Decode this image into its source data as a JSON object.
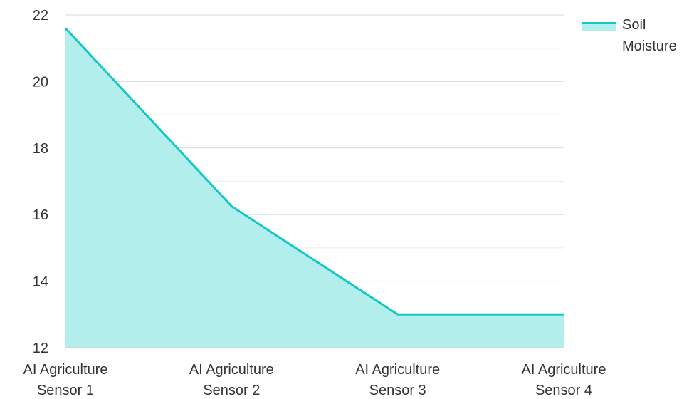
{
  "chart_data": {
    "type": "area",
    "categories": [
      "AI Agriculture Sensor 1",
      "AI Agriculture Sensor 2",
      "AI Agriculture Sensor 3",
      "AI Agriculture Sensor 4"
    ],
    "series": [
      {
        "name": "Soil Moisture",
        "values": [
          21.6,
          16.25,
          13.0,
          13.0
        ]
      }
    ],
    "title": "",
    "xlabel": "",
    "ylabel": "",
    "ylim": [
      12,
      22
    ],
    "yticks": [
      12,
      14,
      16,
      18,
      20,
      22
    ],
    "grid": true,
    "legend_position": "top-right"
  },
  "colors": {
    "line": "#12c7c4",
    "fill": "#b2eeec",
    "grid": "#d9d9d9",
    "text": "#333333"
  },
  "legend": {
    "label": "Soil Moisture"
  }
}
